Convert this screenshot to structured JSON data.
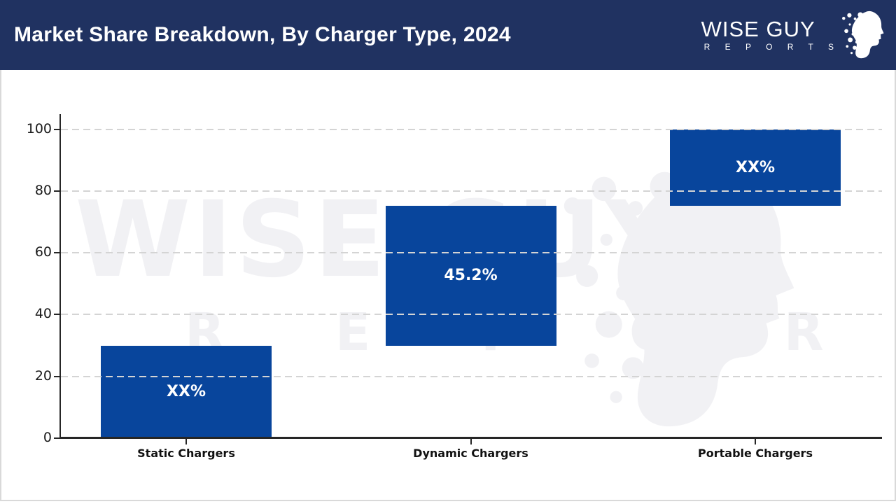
{
  "header": {
    "title": "Market Share Breakdown, By Charger Type, 2024",
    "logo": {
      "name_line": "WISE GUY",
      "sub_line": "R E P O R T S",
      "icon": "dotted-face-profile-icon"
    }
  },
  "watermark": {
    "name_line": "WISE GUY",
    "sub_line": "R E P O R T S",
    "icon": "dotted-face-profile-icon"
  },
  "chart_data": {
    "type": "bar",
    "variant": "floating-waterfall",
    "title": "Market Share Breakdown, By Charger Type, 2024",
    "categories": [
      "Static Chargers",
      "Dynamic Chargers",
      "Portable Chargers"
    ],
    "segments": [
      {
        "category": "Static Chargers",
        "start": 0,
        "end": 30,
        "label": "XX%"
      },
      {
        "category": "Dynamic Chargers",
        "start": 30,
        "end": 75.2,
        "label": "45.2%"
      },
      {
        "category": "Portable Chargers",
        "start": 75.2,
        "end": 100,
        "label": "XX%"
      }
    ],
    "yticks": [
      0,
      20,
      40,
      60,
      80,
      100
    ],
    "ylim": [
      0,
      104
    ],
    "xlabel": "",
    "ylabel": "",
    "grid": "horizontal-dashed",
    "legend": "none",
    "bar_color": "#08459c",
    "value_label_color": "#ffffff"
  },
  "colors": {
    "header_bg": "#203261",
    "header_text": "#ffffff",
    "bar": "#08459c",
    "grid_line": "#d4d4d4",
    "axis_line": "#262626",
    "tick_label": "#1a1a1a",
    "watermark": "#f1f1f4",
    "figure_border": "#d9d9d9"
  }
}
